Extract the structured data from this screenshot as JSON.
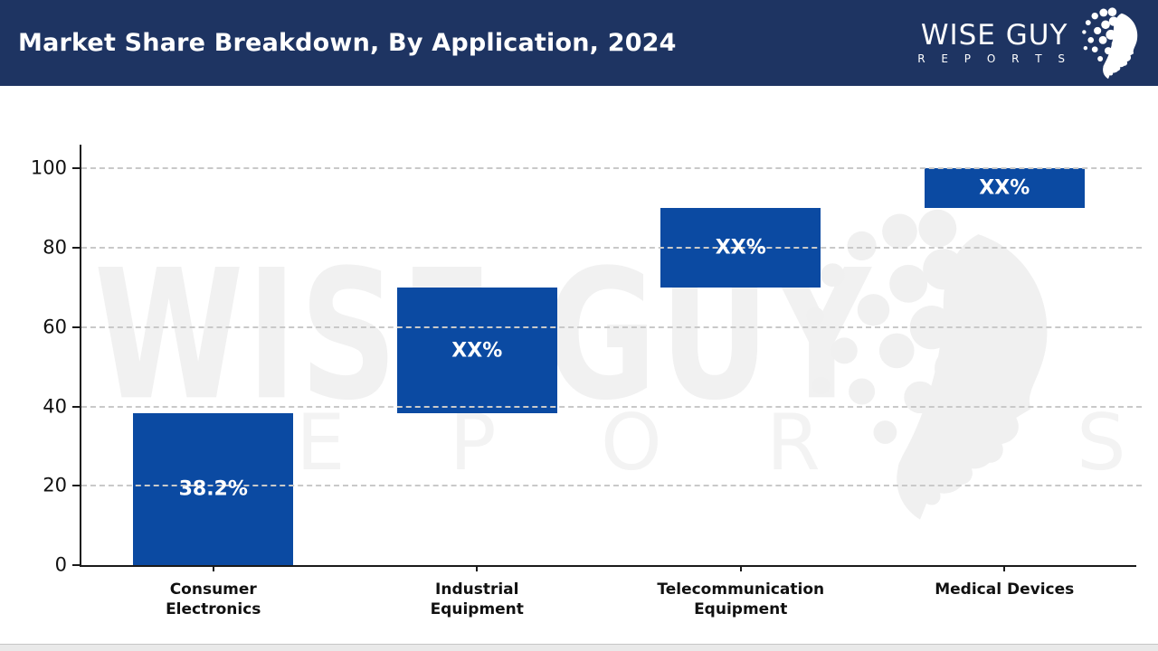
{
  "header": {
    "title": "Market Share Breakdown, By Application, 2024",
    "logo": {
      "wordmark": "WISE GUY",
      "sub": "R E P O R T S",
      "head_icon": "wiseguy-head-icon"
    }
  },
  "watermark": {
    "wordmark": "WISE GUY",
    "sub": "R E P O R T S",
    "head_icon": "wiseguy-head-watermark-icon"
  },
  "chart_data": {
    "type": "bar",
    "subtype": "waterfall",
    "title": "Market Share Breakdown, By Application, 2024",
    "categories": [
      "Consumer Electronics",
      "Industrial Equipment",
      "Telecommunication Equipment",
      "Medical Devices"
    ],
    "category_label_lines": [
      [
        "Consumer",
        "Electronics"
      ],
      [
        "Industrial",
        "Equipment"
      ],
      [
        "Telecommunication",
        "Equipment"
      ],
      [
        "Medical Devices"
      ]
    ],
    "series": [
      {
        "name": "Market Share (%)",
        "segments": [
          {
            "category": "Consumer Electronics",
            "start": 0,
            "end": 38.2,
            "label": "38.2%"
          },
          {
            "category": "Industrial Equipment",
            "start": 38.2,
            "end": 70,
            "label": "XX%"
          },
          {
            "category": "Telecommunication Equipment",
            "start": 70,
            "end": 90,
            "label": "XX%"
          },
          {
            "category": "Medical Devices",
            "start": 90,
            "end": 100,
            "label": "XX%"
          }
        ]
      }
    ],
    "xlabel": "",
    "ylabel": "",
    "yticks": [
      0,
      20,
      40,
      60,
      80,
      100
    ],
    "ylim": [
      0,
      106
    ],
    "grid": "horizontal-dashed",
    "legend": "none",
    "bar_color": "#0b4aa2",
    "bar_label_color": "#ffffff"
  },
  "colors": {
    "header_bg": "#1e3462",
    "bar": "#0b4aa2",
    "grid": "#c9c9c9",
    "axis": "#1a1a1a",
    "watermark": "#f1f1f1",
    "footer_line": "#c6c6c6",
    "footer_band": "#e9e9e9"
  }
}
